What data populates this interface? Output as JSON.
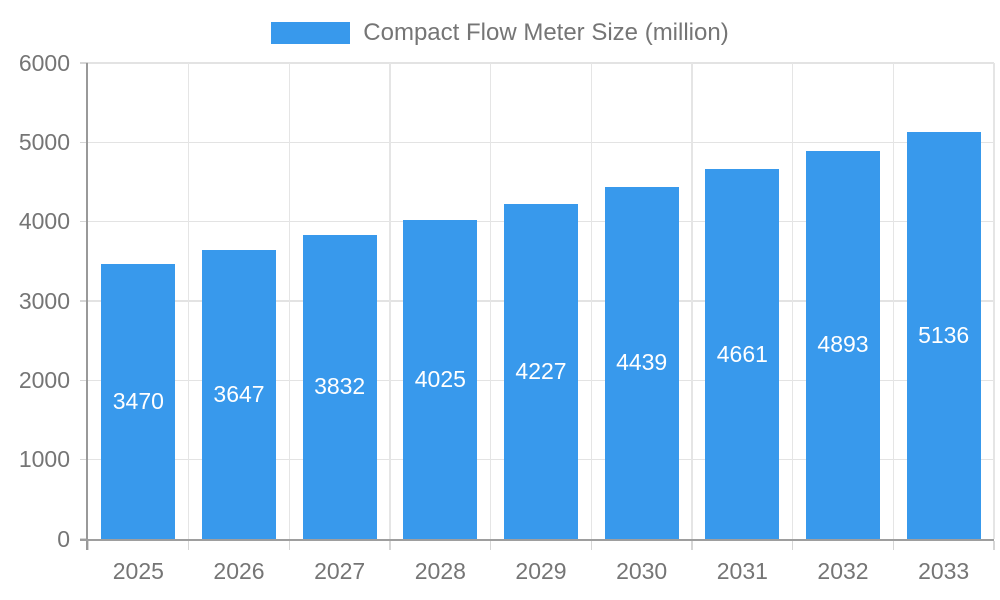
{
  "legend": {
    "label": "Compact Flow Meter Size (million)",
    "swatch_color": "#3899EC"
  },
  "chart_data": {
    "type": "bar",
    "title": "Compact Flow Meter Size (million)",
    "series_name": "Compact Flow Meter Size (million)",
    "categories": [
      "2025",
      "2026",
      "2027",
      "2028",
      "2029",
      "2030",
      "2031",
      "2032",
      "2033"
    ],
    "values": [
      3470,
      3647,
      3832,
      4025,
      4227,
      4439,
      4661,
      4893,
      5136
    ],
    "xlabel": "",
    "ylabel": "",
    "ylim": [
      0,
      6000
    ],
    "yticks": [
      0,
      1000,
      2000,
      3000,
      4000,
      5000,
      6000
    ],
    "grid": true,
    "legend_position": "top-center",
    "bar_color": "#3899EC",
    "value_label_color": "#ffffff",
    "axis_text_color": "#757575",
    "gridline_color": "#e3e3e3"
  }
}
